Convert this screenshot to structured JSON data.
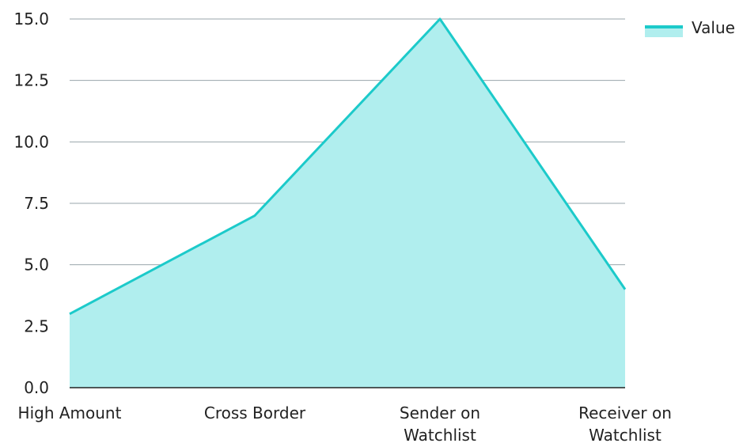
{
  "chart_data": {
    "type": "area",
    "categories": [
      "High Amount",
      "Cross Border",
      "Sender on Watchlist",
      "Receiver on Watchlist"
    ],
    "category_lines": [
      [
        "High Amount"
      ],
      [
        "Cross Border"
      ],
      [
        "Sender on",
        "Watchlist"
      ],
      [
        "Receiver on",
        "Watchlist"
      ]
    ],
    "series": [
      {
        "name": "Value",
        "values": [
          3,
          7,
          15,
          4
        ]
      }
    ],
    "ylim": [
      0,
      15
    ],
    "yticks": [
      0,
      2.5,
      5,
      7.5,
      10,
      12.5,
      15
    ],
    "ytick_labels": [
      "0.0",
      "2.5",
      "5.0",
      "7.5",
      "10.0",
      "12.5",
      "15.0"
    ],
    "grid": true,
    "legend_position": "top-right",
    "colors": {
      "line": "#1ccaca",
      "fill": "#b0eeee",
      "grid": "#9aa5ab",
      "axis": "#222222"
    }
  }
}
